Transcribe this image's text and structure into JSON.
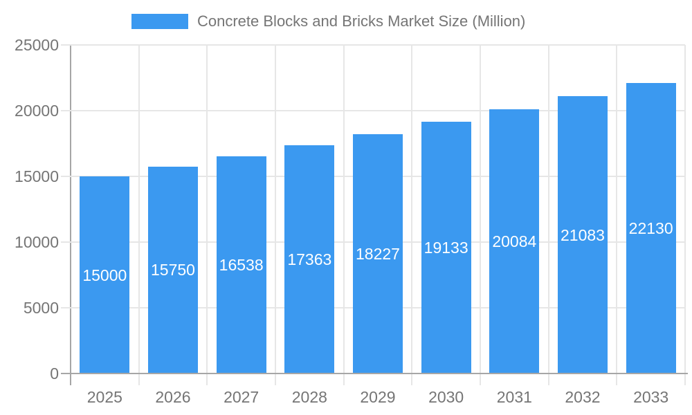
{
  "legend": {
    "label": "Concrete Blocks and Bricks Market Size (Million)"
  },
  "chart_data": {
    "type": "bar",
    "title": "Concrete Blocks and Bricks Market Size (Million)",
    "categories": [
      "2025",
      "2026",
      "2027",
      "2028",
      "2029",
      "2030",
      "2031",
      "2032",
      "2033"
    ],
    "values": [
      15000,
      15750,
      16538,
      17363,
      18227,
      19133,
      20084,
      21083,
      22130
    ],
    "bar_labels": [
      "15000",
      "15750",
      "16538",
      "17363",
      "18227",
      "19133",
      "20084",
      "21083",
      "22130"
    ],
    "xlabel": "",
    "ylabel": "",
    "ylim": [
      0,
      25000
    ],
    "yticks": [
      0,
      5000,
      10000,
      15000,
      20000,
      25000
    ],
    "grid": true,
    "legend_position": "top",
    "value_labels_position": "inside-center",
    "colors": {
      "bar": "#3b99f0",
      "grid": "#e6e6e6",
      "axis": "#a6a6a6",
      "text": "#757575",
      "value_label": "#ffffff",
      "background": "#ffffff"
    }
  }
}
